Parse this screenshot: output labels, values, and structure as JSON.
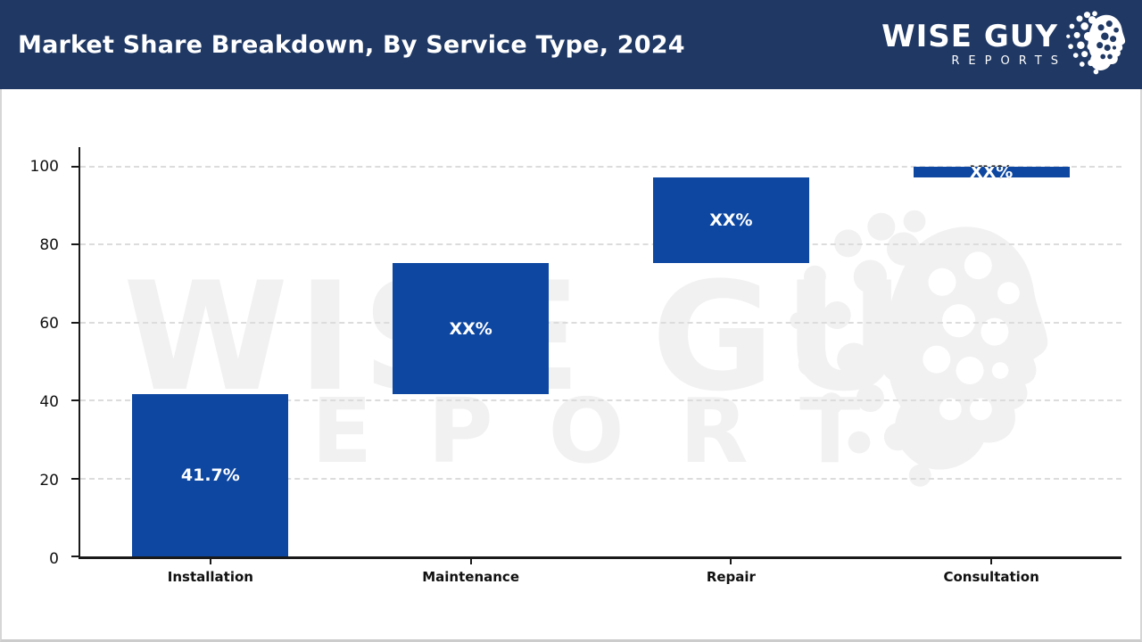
{
  "header": {
    "title": "Market Share Breakdown, By Service Type, 2024",
    "logo": {
      "line1": "WISE GUY",
      "line2": "REPORTS"
    }
  },
  "watermark": {
    "line1": "WISE GUY",
    "line2": "REPORTS"
  },
  "chart_data": {
    "type": "bar",
    "variant": "waterfall",
    "title": "Market Share Breakdown, By Service Type, 2024",
    "categories": [
      "Installation",
      "Maintenance",
      "Repair",
      "Consultation"
    ],
    "segments": [
      {
        "category": "Installation",
        "base": 0,
        "value": 41.7,
        "label": "41.7%"
      },
      {
        "category": "Maintenance",
        "base": 41.7,
        "value": 33.5,
        "label": "XX%"
      },
      {
        "category": "Repair",
        "base": 75.2,
        "value": 22.1,
        "label": "XX%"
      },
      {
        "category": "Consultation",
        "base": 97.3,
        "value": 2.7,
        "label": "XX%"
      }
    ],
    "xlabel": "",
    "ylabel": "",
    "yticks": [
      0,
      20,
      40,
      60,
      80,
      100
    ],
    "ylim": [
      0,
      105
    ],
    "grid": {
      "horizontal": true,
      "style": "dashed"
    },
    "legend": null,
    "colors": {
      "bar": "#0d47a1",
      "label_inside": "#ffffff",
      "label_outside": "#111111",
      "gridline": "#dcdcdc",
      "axis": "#1a1a1a"
    }
  },
  "colors": {
    "header_bg": "#1f3864",
    "body_bg": "#ffffff",
    "watermark": "#f1f1f1"
  }
}
